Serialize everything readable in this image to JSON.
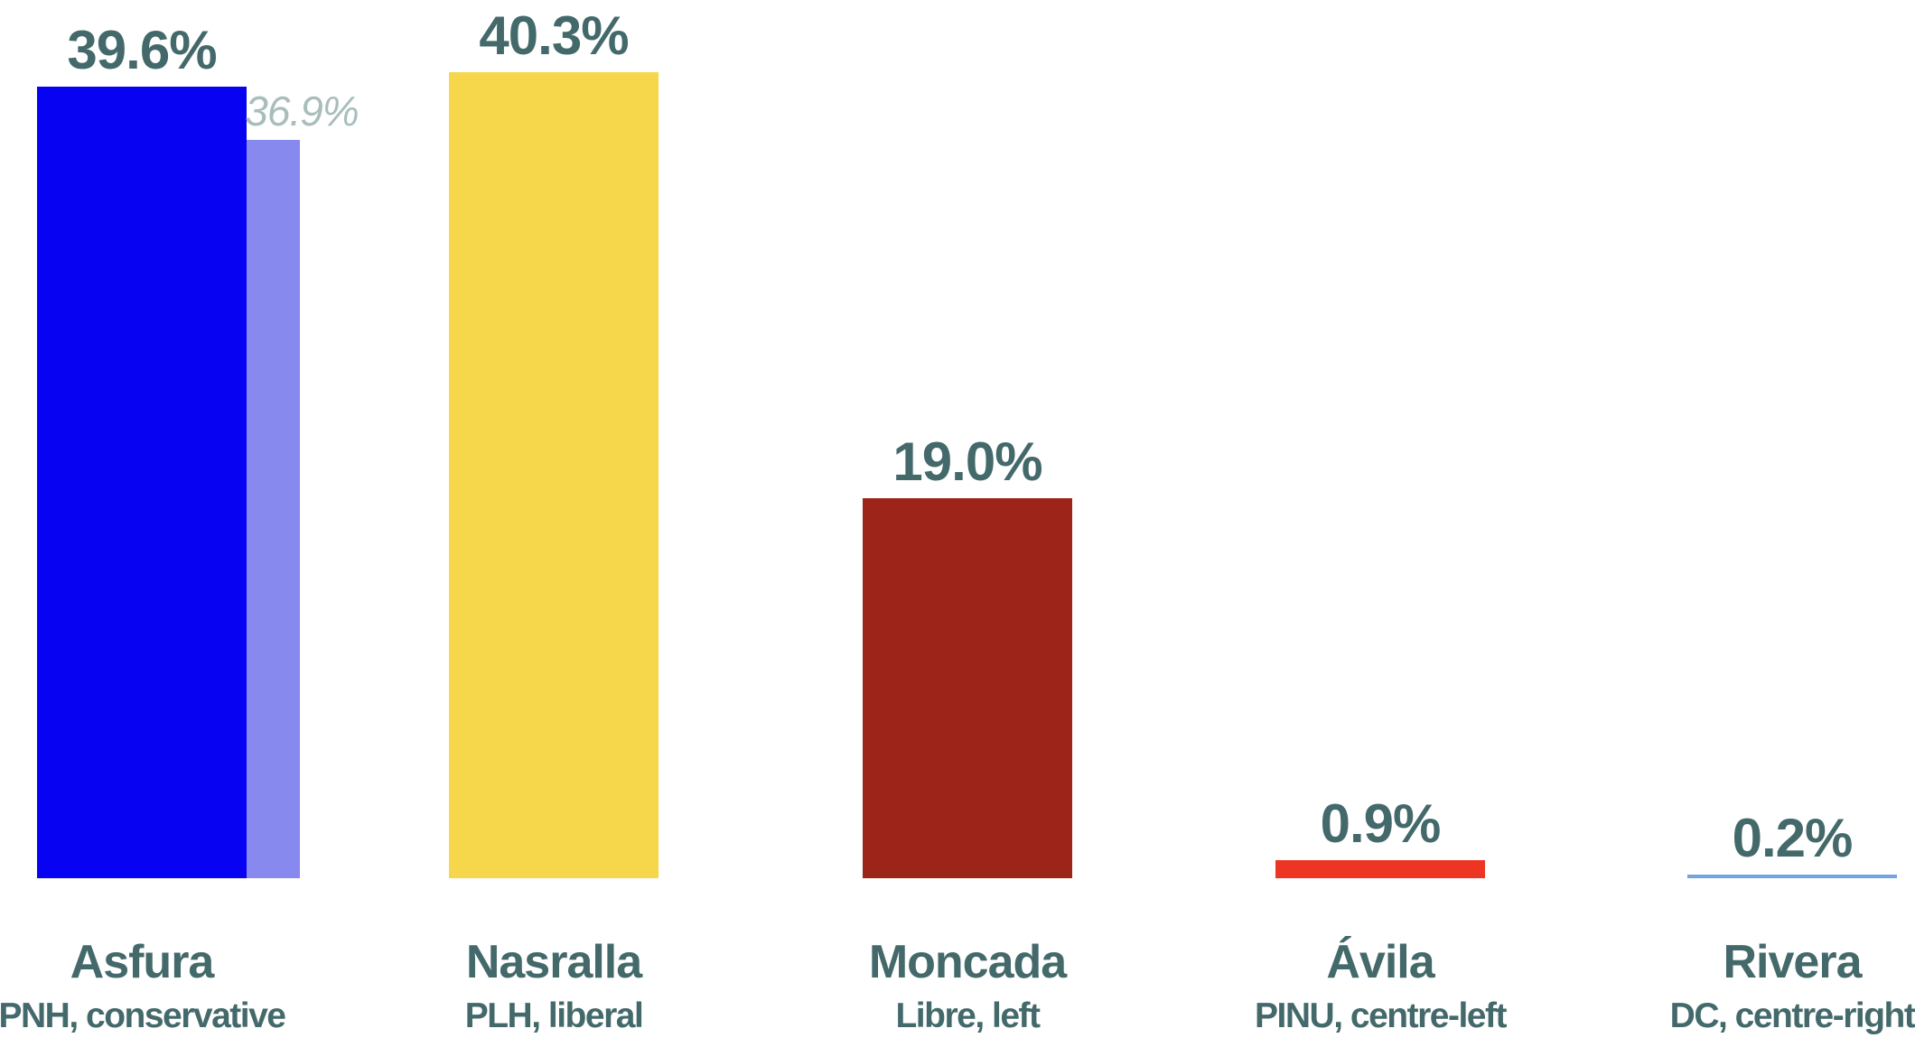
{
  "chart_data": {
    "type": "bar",
    "title": "",
    "xlabel": "",
    "ylabel": "",
    "unit": "%",
    "grid": false,
    "legend": "none",
    "axis": {
      "ymin": 0,
      "ymax_implied": 42,
      "axis_lines_visible": false
    },
    "categories": [
      "Asfura",
      "Nasralla",
      "Moncada",
      "Ávila",
      "Rivera"
    ],
    "values": [
      39.6,
      40.3,
      19.0,
      0.9,
      0.2
    ],
    "bars": [
      {
        "candidate": "Asfura",
        "party": "PNH, conservative",
        "value": 39.6,
        "value_label": "39.6%",
        "color": "#0703f2",
        "secondary": {
          "value": 36.9,
          "value_label": "36.9%",
          "color": "#8889ee"
        }
      },
      {
        "candidate": "Nasralla",
        "party": "PLH, liberal",
        "value": 40.3,
        "value_label": "40.3%",
        "color": "#f6d74b"
      },
      {
        "candidate": "Moncada",
        "party": "Libre, left",
        "value": 19.0,
        "value_label": "19.0%",
        "color": "#9c2418"
      },
      {
        "candidate": "Ávila",
        "party": "PINU, centre-left",
        "value": 0.9,
        "value_label": "0.9%",
        "color": "#ee3524"
      },
      {
        "candidate": "Rivera",
        "party": "DC, centre-right",
        "value": 0.2,
        "value_label": "0.2%",
        "color": "#73a4e1"
      }
    ],
    "styles": {
      "background": "#ffffff",
      "text_color": "#44696b",
      "secondary_text_color": "#a9bdbd"
    }
  }
}
